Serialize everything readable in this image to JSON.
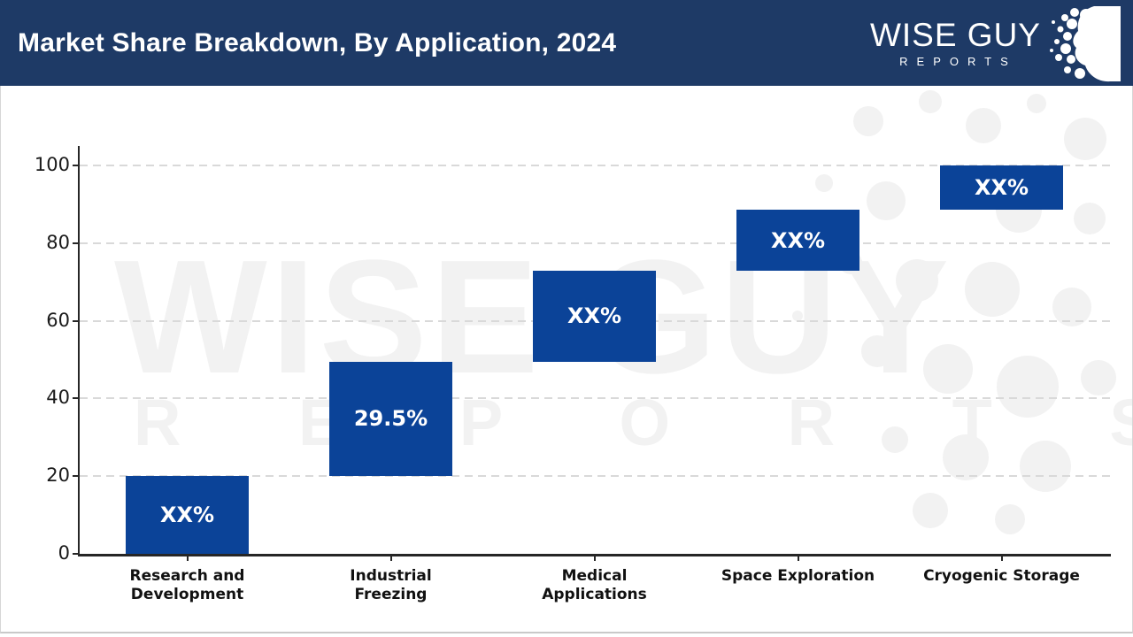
{
  "header": {
    "title": "Market Share Breakdown, By Application, 2024",
    "bg_color": "#1e3a66",
    "logo": {
      "line1": "WISE GUY",
      "line2": "REPORTS"
    }
  },
  "watermark": {
    "line1": "WISE GUY",
    "line2": "R E P O R T S"
  },
  "chart_data": {
    "type": "bar",
    "subtype": "floating-waterfall",
    "title": "Market Share Breakdown, By Application, 2024",
    "categories": [
      "Research and\nDevelopment",
      "Industrial\nFreezing",
      "Medical\nApplications",
      "Space Exploration",
      "Cryogenic Storage"
    ],
    "series": [
      {
        "name": "Market Share",
        "segments": [
          {
            "category": "Research and Development",
            "start": 0,
            "end": 20,
            "label": "XX%"
          },
          {
            "category": "Industrial Freezing",
            "start": 20,
            "end": 49.5,
            "label": "29.5%"
          },
          {
            "category": "Medical Applications",
            "start": 49.5,
            "end": 73,
            "label": "XX%"
          },
          {
            "category": "Space Exploration",
            "start": 73,
            "end": 88.5,
            "label": "XX%"
          },
          {
            "category": "Cryogenic Storage",
            "start": 88.5,
            "end": 100,
            "label": "XX%"
          }
        ]
      }
    ],
    "xlabel": "",
    "ylabel": "",
    "ylim": [
      0,
      100
    ],
    "yticks": [
      0,
      20,
      40,
      60,
      80,
      100
    ],
    "grid": "horizontal-dashed",
    "legend": "none",
    "bar_color": "#0b4398",
    "bar_label_color": "#ffffff",
    "axis_color": "#262626",
    "grid_color": "#d9d9d9"
  }
}
